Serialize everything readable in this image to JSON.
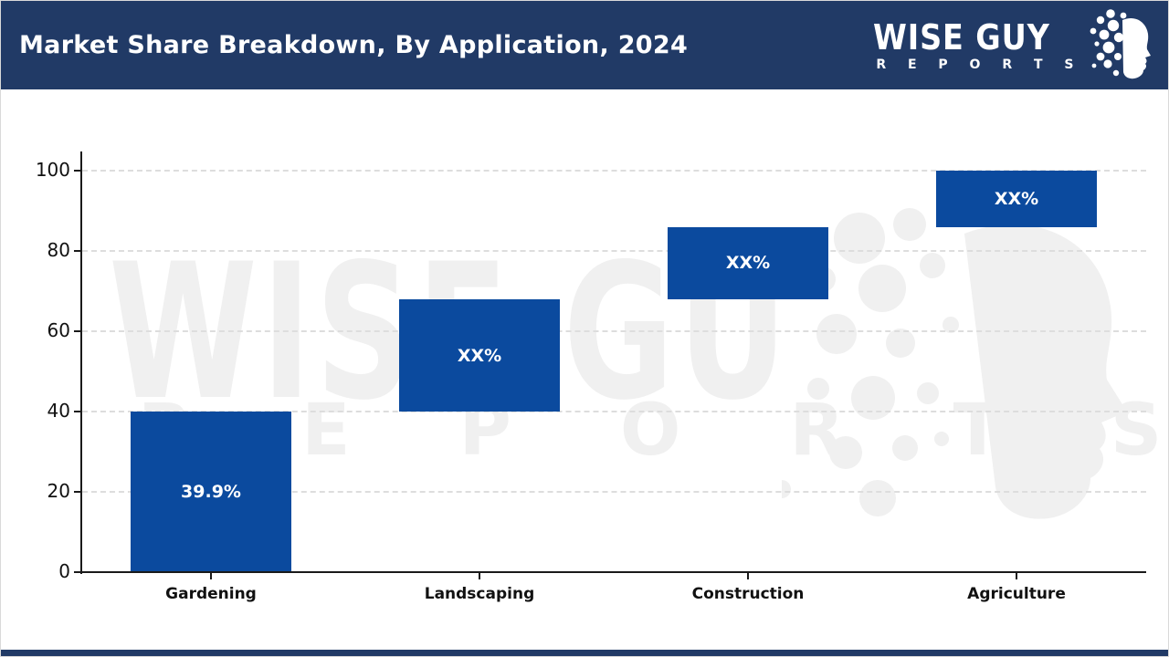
{
  "header": {
    "title": "Market Share Breakdown, By Application, 2024",
    "logo": {
      "line1": "WISE GUY",
      "line2": "R E P O R T S"
    }
  },
  "watermark": {
    "line1": "WISE GU",
    "line2": "R E P O R T S"
  },
  "colors": {
    "header_bg": "#213a66",
    "bar": "#0b4a9e",
    "grid": "#dddddd",
    "axis": "#1a1a1a",
    "bar_label_text": "#ffffff",
    "watermark": "#f0f0f0"
  },
  "chart_data": {
    "type": "bar",
    "subtype": "waterfall",
    "title": "Market Share Breakdown, By Application, 2024",
    "categories": [
      "Gardening",
      "Landscaping",
      "Construction",
      "Agriculture"
    ],
    "segments": [
      {
        "category": "Gardening",
        "start": 0,
        "end": 39.9,
        "label": "39.9%"
      },
      {
        "category": "Landscaping",
        "start": 39.9,
        "end": 68.0,
        "label": "XX%"
      },
      {
        "category": "Construction",
        "start": 68.0,
        "end": 86.0,
        "label": "XX%"
      },
      {
        "category": "Agriculture",
        "start": 86.0,
        "end": 100.0,
        "label": "XX%"
      }
    ],
    "xlabel": "",
    "ylabel": "",
    "ylim": [
      0,
      105
    ],
    "yticks": [
      0,
      20,
      40,
      60,
      80,
      100
    ],
    "grid": "horizontal-dashed",
    "legend": "none"
  }
}
